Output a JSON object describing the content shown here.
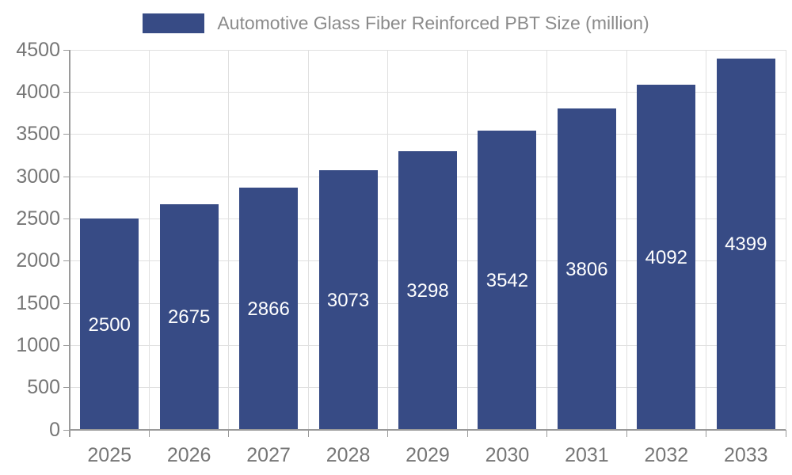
{
  "legend": {
    "label": "Automotive Glass Fiber Reinforced PBT Size (million)"
  },
  "chart_data": {
    "type": "bar",
    "title": "Automotive Glass Fiber Reinforced PBT Size (million)",
    "series_name": "Automotive Glass Fiber Reinforced PBT Size (million)",
    "categories": [
      "2025",
      "2026",
      "2027",
      "2028",
      "2029",
      "2030",
      "2031",
      "2032",
      "2033"
    ],
    "values": [
      2500,
      2675,
      2866,
      3073,
      3298,
      3542,
      3806,
      4092,
      4399
    ],
    "value_labels": [
      "2500",
      "2675",
      "2866",
      "3073",
      "3298",
      "3542",
      "3806",
      "4092",
      "4399"
    ],
    "xlabel": "",
    "ylabel": "",
    "ylim": [
      0,
      4500
    ],
    "ytick_interval": 500,
    "ytick_labels": [
      "0",
      "500",
      "1000",
      "1500",
      "2000",
      "2500",
      "3000",
      "3500",
      "4000",
      "4500"
    ],
    "grid": true,
    "legend_position": "top-center",
    "colors": {
      "bar": "#374b85",
      "value_label": "#ffffff",
      "axis_text": "#767676",
      "legend_text": "#8b8b8b",
      "gridline": "#e0e0e0",
      "axis_line": "#9a9a9a"
    }
  }
}
